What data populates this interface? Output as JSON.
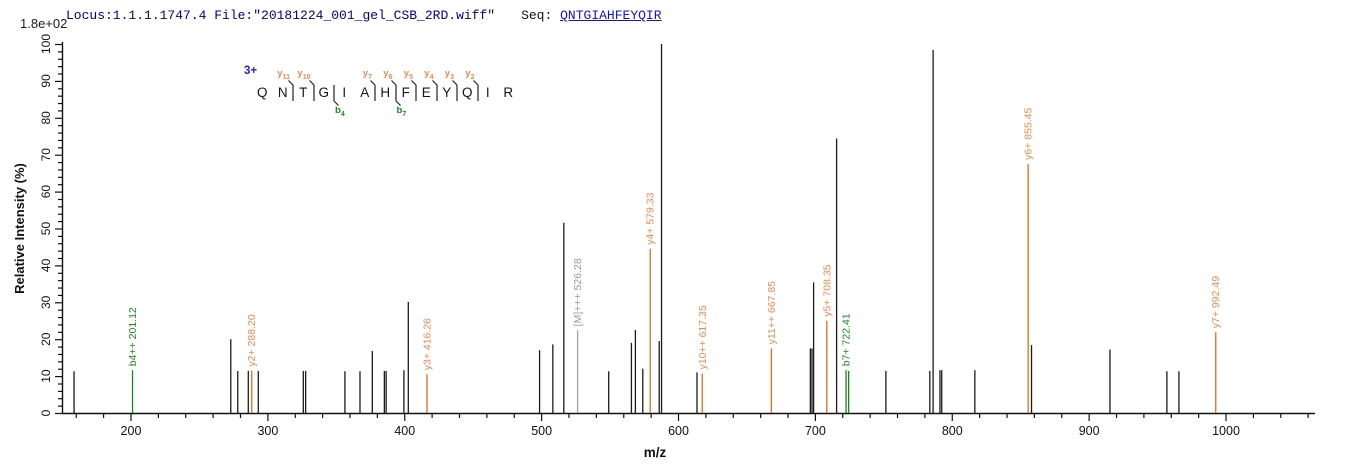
{
  "header": {
    "locus_file": "Locus:1.1.1.1747.4 File:\"20181224_001_gel_CSB_2RD.wiff\"",
    "seq_label": "Seq:",
    "sequence": "QNTGIAHFEYQIR",
    "intensity_scale": "1.8e+02"
  },
  "peptide_diagram": {
    "charge_label": "3+",
    "residues": [
      "Q",
      "N",
      "T",
      "G",
      "I",
      "A",
      "H",
      "F",
      "E",
      "Y",
      "Q",
      "I",
      "R"
    ],
    "cleavages": [
      {
        "after": 1,
        "y": "11"
      },
      {
        "after": 2,
        "y": "10"
      },
      {
        "after": 3,
        "b": "4"
      },
      {
        "after": 5,
        "y": "7"
      },
      {
        "after": 6,
        "y": "6",
        "b": "7"
      },
      {
        "after": 7,
        "y": "5"
      },
      {
        "after": 8,
        "y": "4"
      },
      {
        "after": 9,
        "y": "3"
      },
      {
        "after": 10,
        "y": "2"
      }
    ]
  },
  "colors": {
    "header_navy": "#00008c",
    "sequence_blue": "#1414cc",
    "charge_blue": "#2323cf",
    "y_ion_line": "#e06c1a",
    "y_ion_label": "#ec8a50",
    "b_ion_line": "#178717",
    "b_ion_label": "#1f8a1f",
    "precursor_line": "#a3a3a3",
    "precursor_label": "#9b9b9b",
    "peak_black": "#1b1b1b",
    "axis": "#111111"
  },
  "chart_data": {
    "type": "bar",
    "subtype": "mass-spectrum-stick-plot",
    "xlabel": "m/z",
    "ylabel": "Relative  Intensity (%)",
    "xlim": [
      149.6,
      1065
    ],
    "ylim": [
      0,
      100
    ],
    "x_major_ticks": [
      200,
      300,
      400,
      500,
      600,
      700,
      800,
      900,
      1000
    ],
    "x_minor_step": 20,
    "y_major_ticks": [
      0,
      10,
      20,
      30,
      40,
      50,
      60,
      70,
      80,
      90,
      100
    ],
    "y_minor_step": 2,
    "grid": false,
    "legend": false,
    "peaks": [
      {
        "mz": 158.4,
        "intensity": 11.3,
        "ion": null,
        "label": null
      },
      {
        "mz": 201.12,
        "intensity": 11.6,
        "ion": "b",
        "label": "b4++ 201.12"
      },
      {
        "mz": 272.9,
        "intensity": 20.0,
        "ion": null,
        "label": null
      },
      {
        "mz": 278.0,
        "intensity": 11.4,
        "ion": null,
        "label": null
      },
      {
        "mz": 285.7,
        "intensity": 11.4,
        "ion": null,
        "label": null
      },
      {
        "mz": 288.2,
        "intensity": 11.5,
        "ion": "y",
        "label": "y2+ 288.20"
      },
      {
        "mz": 293.0,
        "intensity": 11.4,
        "ion": null,
        "label": null
      },
      {
        "mz": 325.9,
        "intensity": 11.4,
        "ion": null,
        "label": null
      },
      {
        "mz": 327.6,
        "intensity": 11.4,
        "ion": null,
        "label": null
      },
      {
        "mz": 356.3,
        "intensity": 11.3,
        "ion": null,
        "label": null
      },
      {
        "mz": 367.3,
        "intensity": 11.3,
        "ion": null,
        "label": null
      },
      {
        "mz": 376.3,
        "intensity": 16.8,
        "ion": null,
        "label": null
      },
      {
        "mz": 385.1,
        "intensity": 11.4,
        "ion": null,
        "label": null
      },
      {
        "mz": 386.4,
        "intensity": 11.4,
        "ion": null,
        "label": null
      },
      {
        "mz": 399.4,
        "intensity": 11.6,
        "ion": null,
        "label": null
      },
      {
        "mz": 402.6,
        "intensity": 30.1,
        "ion": null,
        "label": null
      },
      {
        "mz": 416.26,
        "intensity": 10.5,
        "ion": "y",
        "label": "y3+ 416.26"
      },
      {
        "mz": 498.5,
        "intensity": 17.0,
        "ion": null,
        "label": null
      },
      {
        "mz": 508.2,
        "intensity": 18.6,
        "ion": null,
        "label": null
      },
      {
        "mz": 516.2,
        "intensity": 51.6,
        "ion": null,
        "label": null
      },
      {
        "mz": 526.28,
        "intensity": 22.4,
        "ion": "M",
        "label": "[M]+++ 526.28"
      },
      {
        "mz": 549.0,
        "intensity": 11.3,
        "ion": null,
        "label": null
      },
      {
        "mz": 565.6,
        "intensity": 19.0,
        "ion": null,
        "label": null
      },
      {
        "mz": 568.5,
        "intensity": 22.5,
        "ion": null,
        "label": null
      },
      {
        "mz": 573.9,
        "intensity": 12.0,
        "ion": null,
        "label": null
      },
      {
        "mz": 579.33,
        "intensity": 44.5,
        "ion": "y",
        "label": "y4+ 579.33"
      },
      {
        "mz": 585.9,
        "intensity": 19.5,
        "ion": null,
        "label": null
      },
      {
        "mz": 587.6,
        "intensity": 100.0,
        "ion": null,
        "label": null
      },
      {
        "mz": 613.5,
        "intensity": 11.0,
        "ion": null,
        "label": null
      },
      {
        "mz": 617.35,
        "intensity": 10.7,
        "ion": "y",
        "label": "y10++ 617.35"
      },
      {
        "mz": 667.85,
        "intensity": 17.5,
        "ion": "y",
        "label": "y11++ 667.85"
      },
      {
        "mz": 696.3,
        "intensity": 17.5,
        "ion": null,
        "label": null
      },
      {
        "mz": 697.5,
        "intensity": 17.5,
        "ion": null,
        "label": null
      },
      {
        "mz": 698.7,
        "intensity": 35.4,
        "ion": null,
        "label": null
      },
      {
        "mz": 708.35,
        "intensity": 25.0,
        "ion": "y",
        "label": "y5+ 708.35"
      },
      {
        "mz": 715.5,
        "intensity": 74.4,
        "ion": null,
        "label": null
      },
      {
        "mz": 722.41,
        "intensity": 11.6,
        "ion": "b",
        "label": "b7+ 722.41"
      },
      {
        "mz": 724.3,
        "intensity": 11.4,
        "ion": "b",
        "label": null
      },
      {
        "mz": 751.5,
        "intensity": 11.4,
        "ion": null,
        "label": null
      },
      {
        "mz": 783.6,
        "intensity": 11.4,
        "ion": null,
        "label": null
      },
      {
        "mz": 786.0,
        "intensity": 98.4,
        "ion": null,
        "label": null
      },
      {
        "mz": 791.0,
        "intensity": 11.6,
        "ion": null,
        "label": null
      },
      {
        "mz": 792.3,
        "intensity": 11.6,
        "ion": null,
        "label": null
      },
      {
        "mz": 816.5,
        "intensity": 11.6,
        "ion": null,
        "label": null
      },
      {
        "mz": 855.45,
        "intensity": 67.5,
        "ion": "y",
        "label": "y6+ 855.45"
      },
      {
        "mz": 857.9,
        "intensity": 18.4,
        "ion": null,
        "label": null
      },
      {
        "mz": 915.2,
        "intensity": 17.2,
        "ion": null,
        "label": null
      },
      {
        "mz": 956.8,
        "intensity": 11.3,
        "ion": null,
        "label": null
      },
      {
        "mz": 965.6,
        "intensity": 11.3,
        "ion": null,
        "label": null
      },
      {
        "mz": 992.49,
        "intensity": 21.9,
        "ion": "y",
        "label": "y7+ 992.49"
      }
    ]
  }
}
